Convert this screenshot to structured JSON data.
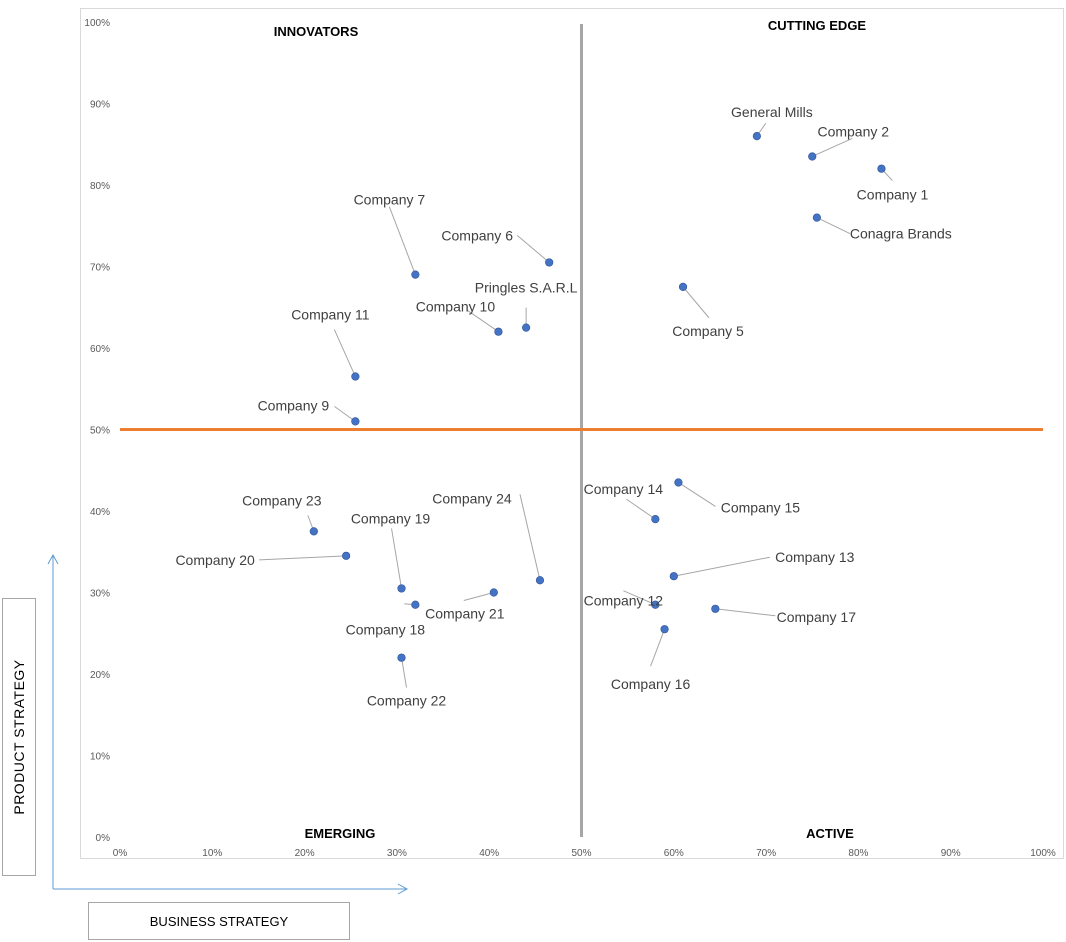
{
  "axis_titles": {
    "y": "PRODUCT STRATEGY",
    "x": "BUSINESS STRATEGY"
  },
  "quadrants": {
    "top_left": "INNOVATORS",
    "top_right": "CUTTING EDGE",
    "bottom_left": "EMERGING",
    "bottom_right": "ACTIVE"
  },
  "colors": {
    "point": "#4472c4",
    "h_divider": "#ed7d31",
    "v_divider": "#a6a6a6",
    "leader": "#a6a6a6"
  },
  "chart_data": {
    "type": "scatter",
    "xlim": [
      0,
      100
    ],
    "ylim": [
      0,
      100
    ],
    "x_ticks": [
      "0%",
      "10%",
      "20%",
      "30%",
      "40%",
      "50%",
      "60%",
      "70%",
      "80%",
      "90%",
      "100%"
    ],
    "y_ticks": [
      "0%",
      "10%",
      "20%",
      "30%",
      "40%",
      "50%",
      "60%",
      "70%",
      "80%",
      "90%",
      "100%"
    ],
    "dividers": {
      "x": 50,
      "y": 50
    },
    "grid": false,
    "points": [
      {
        "label": "General Mills",
        "x": 69.0,
        "y": 86.0
      },
      {
        "label": "Company 2",
        "x": 75.0,
        "y": 83.5
      },
      {
        "label": "Company 1",
        "x": 82.5,
        "y": 82.0
      },
      {
        "label": "Conagra Brands",
        "x": 75.5,
        "y": 76.0
      },
      {
        "label": "Company 5",
        "x": 61.0,
        "y": 67.5
      },
      {
        "label": "Company 7",
        "x": 32.0,
        "y": 69.0
      },
      {
        "label": "Company 6",
        "x": 46.5,
        "y": 70.5
      },
      {
        "label": "Pringles S.A.R.L",
        "x": 44.0,
        "y": 62.5
      },
      {
        "label": "Company 10",
        "x": 41.0,
        "y": 62.0
      },
      {
        "label": "Company 11",
        "x": 25.5,
        "y": 56.5
      },
      {
        "label": "Company 9",
        "x": 25.5,
        "y": 51.0
      },
      {
        "label": "Company 15",
        "x": 60.5,
        "y": 43.5
      },
      {
        "label": "Company 14",
        "x": 58.0,
        "y": 39.0
      },
      {
        "label": "Company 13",
        "x": 60.0,
        "y": 32.0
      },
      {
        "label": "Company 12",
        "x": 58.0,
        "y": 28.5
      },
      {
        "label": "Company 17",
        "x": 64.5,
        "y": 28.0
      },
      {
        "label": "Company 16",
        "x": 59.0,
        "y": 25.5
      },
      {
        "label": "Company 23",
        "x": 21.0,
        "y": 37.5
      },
      {
        "label": "Company 20",
        "x": 24.5,
        "y": 34.5
      },
      {
        "label": "Company 19",
        "x": 30.5,
        "y": 30.5
      },
      {
        "label": "Company 18",
        "x": 32.0,
        "y": 28.5
      },
      {
        "label": "Company 21",
        "x": 40.5,
        "y": 30.0
      },
      {
        "label": "Company 24",
        "x": 45.5,
        "y": 31.5
      },
      {
        "label": "Company 22",
        "x": 30.5,
        "y": 22.0
      }
    ]
  }
}
